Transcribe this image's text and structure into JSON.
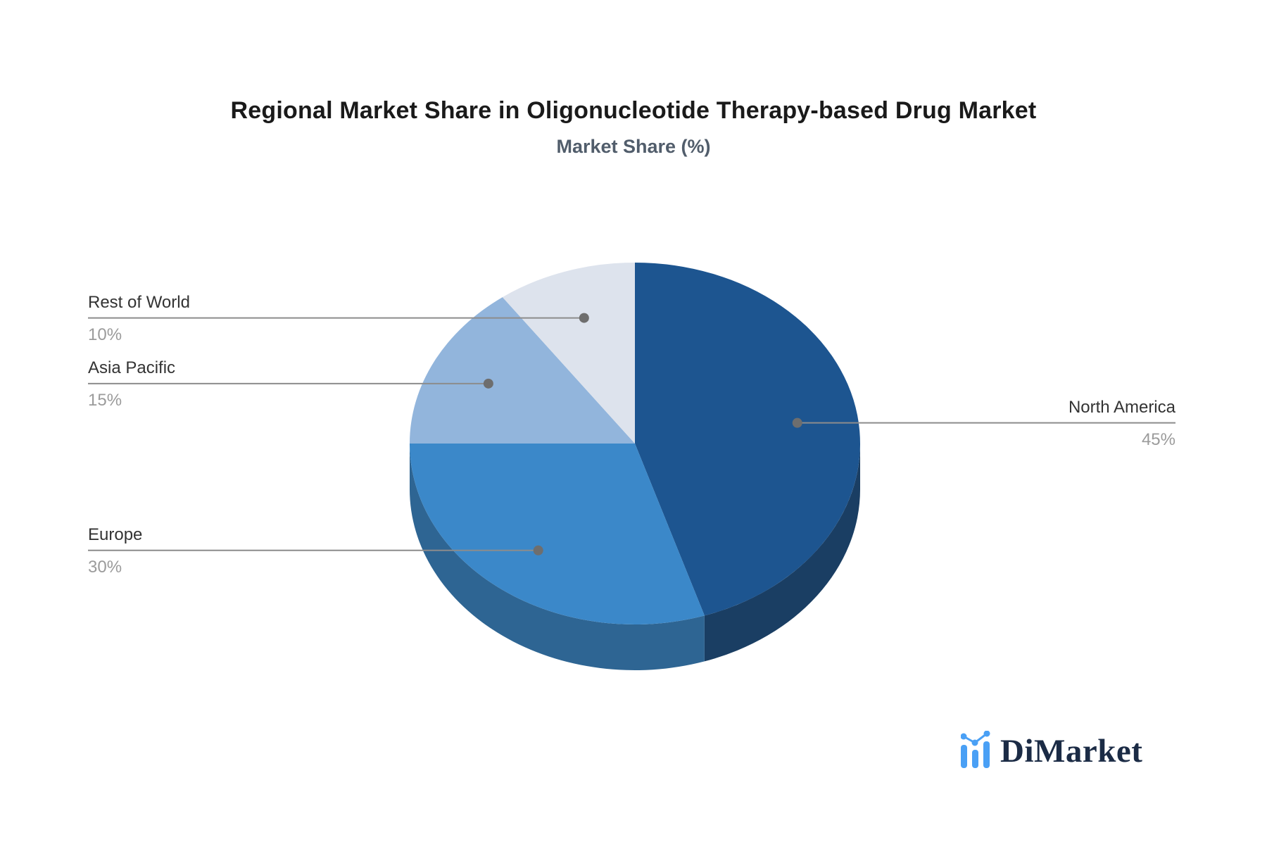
{
  "chart_data": {
    "type": "pie",
    "title": "Regional Market Share in Oligonucleotide Therapy-based Drug Market",
    "subtitle": "Market Share (%)",
    "unit": "%",
    "effect": "3d",
    "legend": "none",
    "start_angle_deg": 0,
    "direction": "clockwise",
    "categories": [
      "North America",
      "Europe",
      "Asia Pacific",
      "Rest of World"
    ],
    "values": [
      45,
      30,
      15,
      10
    ],
    "value_labels": [
      "45%",
      "30%",
      "15%",
      "10%"
    ],
    "colors": [
      "#1d5590",
      "#3b88c9",
      "#92b5dc",
      "#dde3ed"
    ],
    "side_colors": [
      "#1a3e63",
      "#2e6593",
      "#7fa8d4",
      "#c9d3e2"
    ],
    "label_style": {
      "name_color": "#333333",
      "value_color": "#9b9b9b",
      "line_color": "#8c8c8c",
      "dot_color": "#6e6e6e"
    }
  },
  "branding": {
    "logo_text": "DiMarket",
    "logo_text_color": "#1b2b45",
    "logo_icon": "bar-chart-with-trend-dots-icon",
    "logo_icon_color": "#4aa0f5"
  }
}
